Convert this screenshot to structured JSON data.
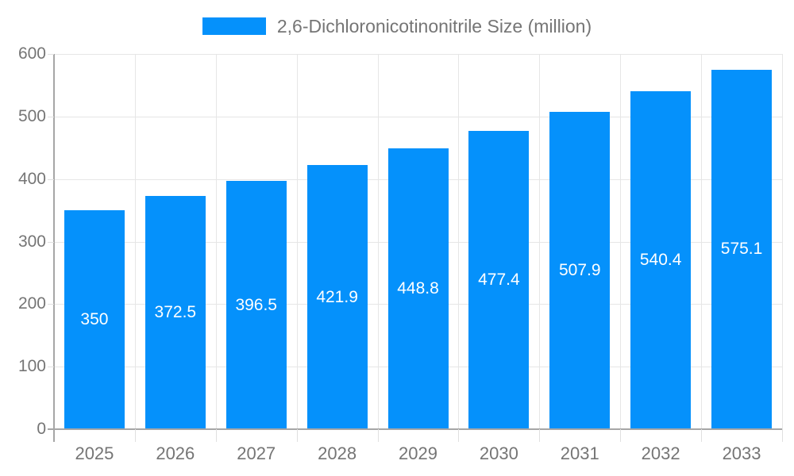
{
  "colors": {
    "bar": "#0591fb",
    "grid": "#e6e6e6",
    "axis": "#a6a6a6",
    "tick": "#e0e0e0",
    "text_muted": "#757575",
    "bar_label": "#ffffff",
    "background": "#ffffff"
  },
  "legend": {
    "swatch_icon": "series-color-swatch",
    "label": "2,6-Dichloronicotinonitrile Size (million)"
  },
  "chart_data": {
    "type": "bar",
    "title": "2,6-Dichloronicotinonitrile Size (million)",
    "categories": [
      "2025",
      "2026",
      "2027",
      "2028",
      "2029",
      "2030",
      "2031",
      "2032",
      "2033"
    ],
    "values": [
      350,
      372.5,
      396.5,
      421.9,
      448.8,
      477.4,
      507.9,
      540.4,
      575.1
    ],
    "value_labels": [
      "350",
      "372.5",
      "396.5",
      "421.9",
      "448.8",
      "477.4",
      "507.9",
      "540.4",
      "575.1"
    ],
    "series_name": "2,6-Dichloronicotinonitrile Size (million)",
    "xlabel": "",
    "ylabel": "",
    "ylim": [
      0,
      600
    ],
    "y_ticks": [
      0,
      100,
      200,
      300,
      400,
      500,
      600
    ],
    "grid": "on",
    "legend_position": "top-center",
    "data_label_position": "inside-center",
    "data_label_color": "#ffffff"
  }
}
